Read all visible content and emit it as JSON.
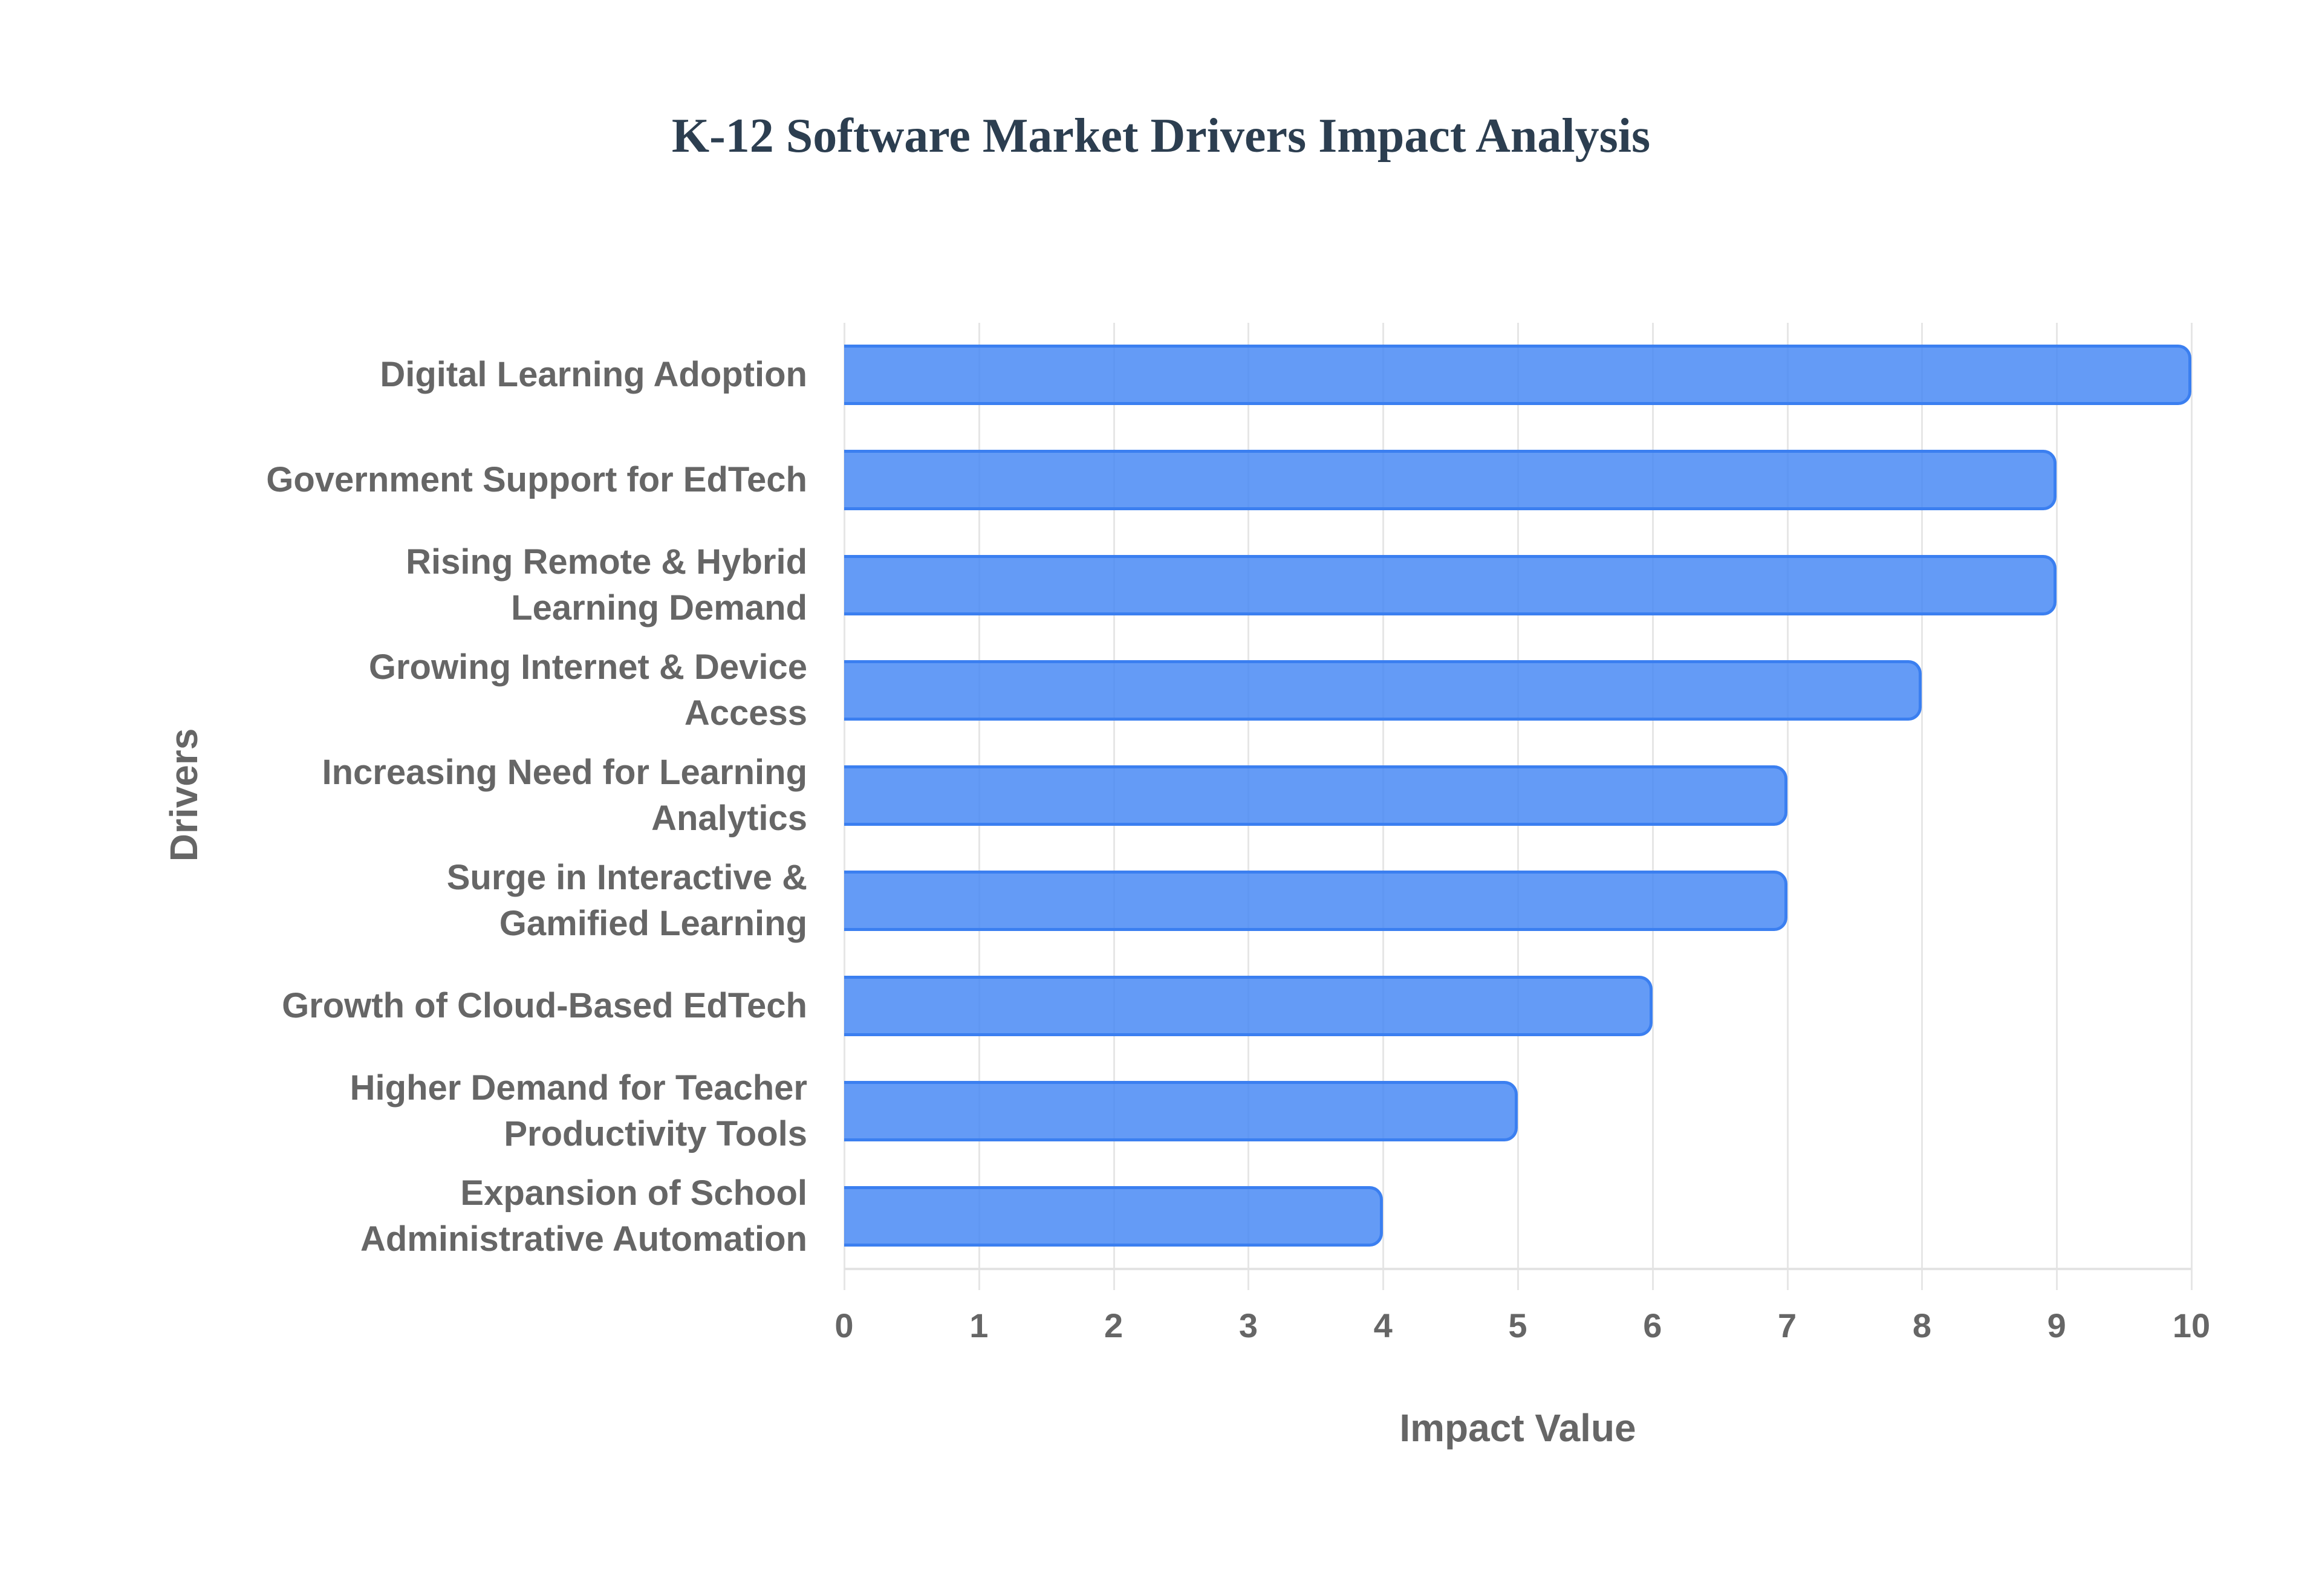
{
  "chart_data": {
    "type": "bar",
    "orientation": "horizontal",
    "title": "K-12 Software Market Drivers Impact Analysis",
    "xlabel": "Impact Value",
    "ylabel": "Drivers",
    "xlim": [
      0,
      10
    ],
    "x_ticks": [
      "0",
      "1",
      "2",
      "3",
      "4",
      "5",
      "6",
      "7",
      "8",
      "9",
      "10"
    ],
    "grid": true,
    "legend": null,
    "bar_color": "#4285f4",
    "bar_border_color": "#3b7ff0",
    "categories": [
      "Digital Learning Adoption",
      "Government Support for EdTech",
      "Rising Remote & Hybrid\nLearning Demand",
      "Growing Internet & Device\nAccess",
      "Increasing Need for Learning\nAnalytics",
      "Surge in Interactive &\nGamified Learning",
      "Growth of Cloud-Based EdTech",
      "Higher Demand for Teacher\nProductivity Tools",
      "Expansion of School\nAdministrative Automation"
    ],
    "values": [
      10,
      9,
      9,
      8,
      7,
      7,
      6,
      5,
      4
    ]
  }
}
